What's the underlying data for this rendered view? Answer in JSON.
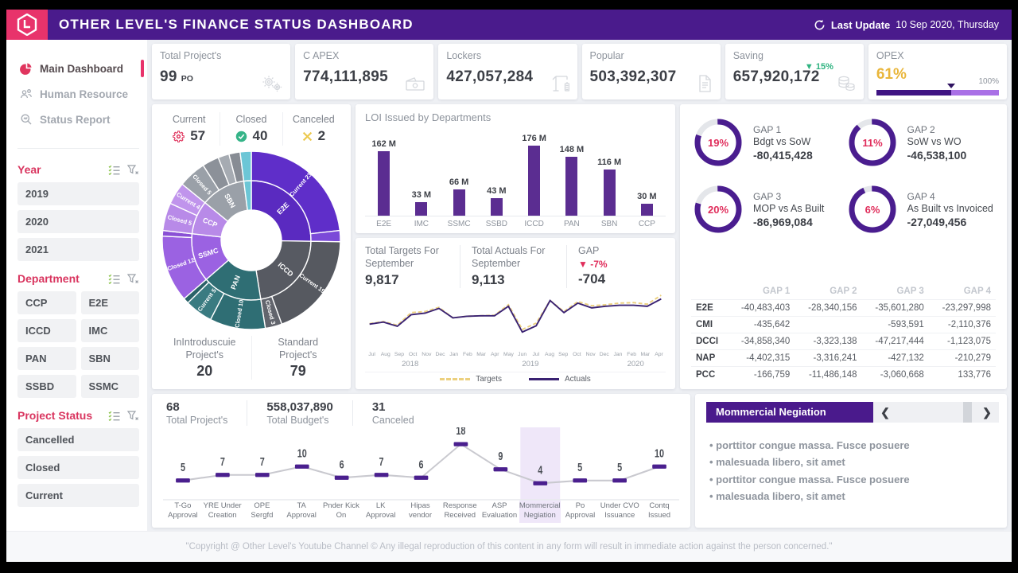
{
  "colors": {
    "header_purple": "#4a1b8c",
    "accent_pink": "#e8336b",
    "bar_purple": "#5b2d91",
    "ring_purple": "#4a1d8f",
    "gold": "#e9b63b",
    "green": "#2fb380",
    "red": "#e02d5b",
    "targets_line": "#ecd07e",
    "actuals_line": "#3a2272"
  },
  "header": {
    "title": "OTHER LEVEL'S FINANCE STATUS DASHBOARD",
    "last_update_label": "Last Update",
    "last_update_value": "10 Sep 2020, Thursday"
  },
  "sidebar": {
    "menu": [
      {
        "label": "Main Dashboard",
        "icon": "pie-chart-icon",
        "active": true
      },
      {
        "label": "Human Resource",
        "icon": "people-icon",
        "active": false
      },
      {
        "label": "Status Report",
        "icon": "search-report-icon",
        "active": false
      }
    ],
    "filters": [
      {
        "title": "Year",
        "columns": 1,
        "items": [
          "2019",
          "2020",
          "2021"
        ]
      },
      {
        "title": "Department",
        "columns": 2,
        "items": [
          "CCP",
          "E2E",
          "ICCD",
          "IMC",
          "PAN",
          "SBN",
          "SSBD",
          "SSMC"
        ]
      },
      {
        "title": "Project Status",
        "columns": 1,
        "items": [
          "Cancelled",
          "Closed",
          "Current"
        ]
      }
    ]
  },
  "kpis": {
    "total_projects": {
      "label": "Total Project's",
      "value": "99",
      "suffix": "PO",
      "icon": "gears-icon"
    },
    "capex": {
      "label": "C APEX",
      "value": "774,111,895",
      "icon": "banknote-icon"
    },
    "lockers": {
      "label": "Lockers",
      "value": "427,057,284",
      "icon": "crane-icon"
    },
    "popular": {
      "label": "Popular",
      "value": "503,392,307",
      "icon": "document-icon"
    },
    "saving": {
      "label": "Saving",
      "value": "657,920,172",
      "delta": "15%",
      "icon": "coins-icon"
    },
    "opex": {
      "label": "OPEX",
      "value": "61%",
      "percent": 61,
      "max_label": "100%"
    }
  },
  "status_summary": [
    {
      "label": "Current",
      "value": "57",
      "icon": "gear-icon",
      "color": "#e0355e"
    },
    {
      "label": "Closed",
      "value": "40",
      "icon": "check-circle-icon",
      "color": "#35b488"
    },
    {
      "label": "Canceled",
      "value": "2",
      "icon": "x-icon",
      "color": "#ecc94e"
    }
  ],
  "project_type_stats": [
    {
      "label": "InIntroduscuie Project's",
      "value": "20"
    },
    {
      "label": "Standard Project's",
      "value": "79"
    }
  ],
  "loi": {
    "title": "LOI Issued by Departments"
  },
  "targets_stats": [
    {
      "label": "Total Targets For September",
      "value": "9,817"
    },
    {
      "label": "Total Actuals For September",
      "value": "9,113"
    },
    {
      "label": "GAP",
      "value": "-704",
      "delta": "▼ -7%"
    }
  ],
  "gaps": [
    {
      "name": "GAP 1",
      "compare": "Bdgt vs SoW",
      "value": "-80,415,428",
      "percent": 19
    },
    {
      "name": "GAP 2",
      "compare": "SoW vs WO",
      "value": "-46,538,100",
      "percent": 11
    },
    {
      "name": "GAP 3",
      "compare": "MOP vs As Built",
      "value": "-86,969,084",
      "percent": 20
    },
    {
      "name": "GAP 4",
      "compare": "As Built vs Invoiced",
      "value": "-27,049,456",
      "percent": 6
    }
  ],
  "gap_table": {
    "columns": [
      "",
      "GAP 1",
      "GAP 2",
      "GAP 3",
      "GAP 4"
    ],
    "rows": [
      {
        "name": "E2E",
        "values": [
          "-40,483,403",
          "-28,340,156",
          "-35,601,280",
          "-23,297,998"
        ]
      },
      {
        "name": "CMI",
        "values": [
          "-435,642",
          "",
          "-593,591",
          "-2,110,376"
        ]
      },
      {
        "name": "DCCI",
        "values": [
          "-34,858,340",
          "-3,323,138",
          "-47,217,444",
          "-1,123,075"
        ]
      },
      {
        "name": "NAP",
        "values": [
          "-4,402,315",
          "-3,316,241",
          "-427,132",
          "-210,279"
        ]
      },
      {
        "name": "PCC",
        "values": [
          "-166,759",
          "-11,486,148",
          "-3,060,668",
          "133,776"
        ]
      }
    ]
  },
  "pipeline_stats": [
    {
      "value": "68",
      "label": "Total Project's"
    },
    {
      "value": "558,037,890",
      "label": "Total Budget's"
    },
    {
      "value": "31",
      "label": "Canceled"
    }
  ],
  "negotiation_panel": {
    "title": "Mommercial Negiation",
    "prev_arrow": "❮",
    "next_arrow": "❯",
    "bullets": [
      "porttitor congue massa. Fusce posuere",
      "malesuada libero, sit amet",
      "porttitor congue massa. Fusce posuere",
      "malesuada libero, sit amet"
    ]
  },
  "footer": {
    "copyright": "\"Copyright @ Other Level's Youtube Channel © Any illegal reproduction of this content in any form will result in immediate action against the person concerned.\""
  },
  "chart_data": [
    {
      "id": "project_sunburst",
      "type": "pie",
      "variant": "sunburst",
      "title": "",
      "rings": [
        "inner: department",
        "outer: project status count"
      ],
      "segments": [
        {
          "dept": "E2E",
          "color": "#5a2ac0",
          "children": [
            {
              "text": "Current 23",
              "value": 23,
              "color": "#5f2ec9"
            },
            {
              "text": "",
              "value": 2,
              "color": "#7b4ad8"
            }
          ]
        },
        {
          "dept": "ICCD",
          "color": "#575a62",
          "children": [
            {
              "text": "Current 19",
              "value": 19,
              "color": "#565960"
            },
            {
              "text": "Closed 3",
              "value": 3,
              "color": "#62656d"
            }
          ]
        },
        {
          "dept": "PAN",
          "color": "#2f6e74",
          "children": [
            {
              "text": "Closed 10",
              "value": 10,
              "color": "#2f6e74"
            },
            {
              "text": "Current 5",
              "value": 5,
              "color": "#3a7b81"
            },
            {
              "text": "",
              "value": 1,
              "color": "#2a6268"
            }
          ]
        },
        {
          "dept": "SSMC",
          "color": "#9b62e2",
          "children": [
            {
              "text": "Closed 12",
              "value": 12,
              "color": "#9b62e2"
            },
            {
              "text": "",
              "value": 1,
              "color": "#8a50d5"
            }
          ]
        },
        {
          "dept": "CCP",
          "color": "#b88ae8",
          "children": [
            {
              "text": "Closed 5",
              "value": 5,
              "color": "#b88ae8"
            },
            {
              "text": "Current 4",
              "value": 4,
              "color": "#c094ec"
            }
          ]
        },
        {
          "dept": "SBN",
          "color": "#9aa0a8",
          "children": [
            {
              "text": "Closed 5",
              "value": 5,
              "color": "#9aa0a8"
            },
            {
              "text": "",
              "value": 3,
              "color": "#8c9199"
            },
            {
              "text": "",
              "value": 2,
              "color": "#a6abb2"
            },
            {
              "text": "",
              "value": 2,
              "color": "#878c94"
            }
          ]
        },
        {
          "dept": "",
          "color": "#6cc6d6",
          "children": [
            {
              "text": "",
              "value": 2,
              "color": "#6cc6d6"
            }
          ]
        }
      ]
    },
    {
      "id": "loi_by_department",
      "type": "bar",
      "title": "LOI Issued by Departments",
      "categories": [
        "E2E",
        "IMC",
        "SSMC",
        "SSBD",
        "ICCD",
        "PAN",
        "SBN",
        "CCP"
      ],
      "values": [
        162,
        33,
        66,
        43,
        176,
        148,
        116,
        30
      ],
      "labels": [
        "162 M",
        "33 M",
        "66 M",
        "43 M",
        "176 M",
        "148 M",
        "116 M",
        "30 M"
      ],
      "ylim": [
        0,
        176
      ],
      "bar_color": "#5b2d91"
    },
    {
      "id": "targets_vs_actuals",
      "type": "line",
      "title": "",
      "x": [
        "Jul",
        "Aug",
        "Sep",
        "Oct",
        "Nov",
        "Dec",
        "Jan",
        "Feb",
        "Mar",
        "Apr",
        "May",
        "Jun",
        "Jul",
        "Aug",
        "Sep",
        "Oct",
        "Nov",
        "Dec",
        "Jan",
        "Feb",
        "Mar",
        "Apr"
      ],
      "year_markers": [
        {
          "label": "2018",
          "position": 0.15
        },
        {
          "label": "2019",
          "position": 0.55
        },
        {
          "label": "2020",
          "position": 0.9
        }
      ],
      "series": [
        {
          "name": "Targets",
          "style": "dashed",
          "color": "#ecd07e",
          "values": [
            41,
            45,
            38,
            62,
            64,
            72,
            52,
            55,
            56,
            57,
            77,
            30,
            42,
            85,
            64,
            83,
            75,
            77,
            80,
            81,
            78,
            95
          ]
        },
        {
          "name": "Actuals",
          "style": "solid",
          "color": "#3a2272",
          "values": [
            40,
            44,
            36,
            58,
            61,
            70,
            52,
            55,
            56,
            56,
            74,
            25,
            37,
            85,
            62,
            80,
            71,
            74,
            76,
            76,
            74,
            88
          ]
        }
      ],
      "ylim": [
        0,
        100
      ],
      "legend_position": "bottom"
    },
    {
      "id": "project_pipeline",
      "type": "line",
      "variant": "dash-markers",
      "title": "",
      "categories": [
        [
          "T-Go",
          "Approval"
        ],
        [
          "YRE Under",
          "Creation"
        ],
        [
          "OPE Sergfd"
        ],
        [
          "TA Approval"
        ],
        [
          "Pnder Kick",
          "On"
        ],
        [
          "LK Approval"
        ],
        [
          "Hipas",
          "vendor"
        ],
        [
          "Response",
          "Received"
        ],
        [
          "ASP",
          "Evaluation"
        ],
        [
          "Mommercial",
          "Negiation"
        ],
        [
          "Po Approval"
        ],
        [
          "Under CVO",
          "Issuance"
        ],
        [
          "Contq",
          "Issued"
        ]
      ],
      "values": [
        5,
        7,
        7,
        10,
        6,
        7,
        6,
        18,
        9,
        4,
        5,
        5,
        10
      ],
      "highlight_index": 9,
      "ylim": [
        0,
        18
      ],
      "marker_color": "#4a1f8e",
      "line_color": "#c9c9cf"
    },
    {
      "id": "gap_rings",
      "type": "pie",
      "variant": "donut-kpi",
      "items": [
        {
          "label": "GAP 1",
          "percent": 19
        },
        {
          "label": "GAP 2",
          "percent": 11
        },
        {
          "label": "GAP 3",
          "percent": 20
        },
        {
          "label": "GAP 4",
          "percent": 6
        }
      ],
      "ring_color": "#4a1d8f",
      "rest_color": "#e4e6ea"
    }
  ]
}
